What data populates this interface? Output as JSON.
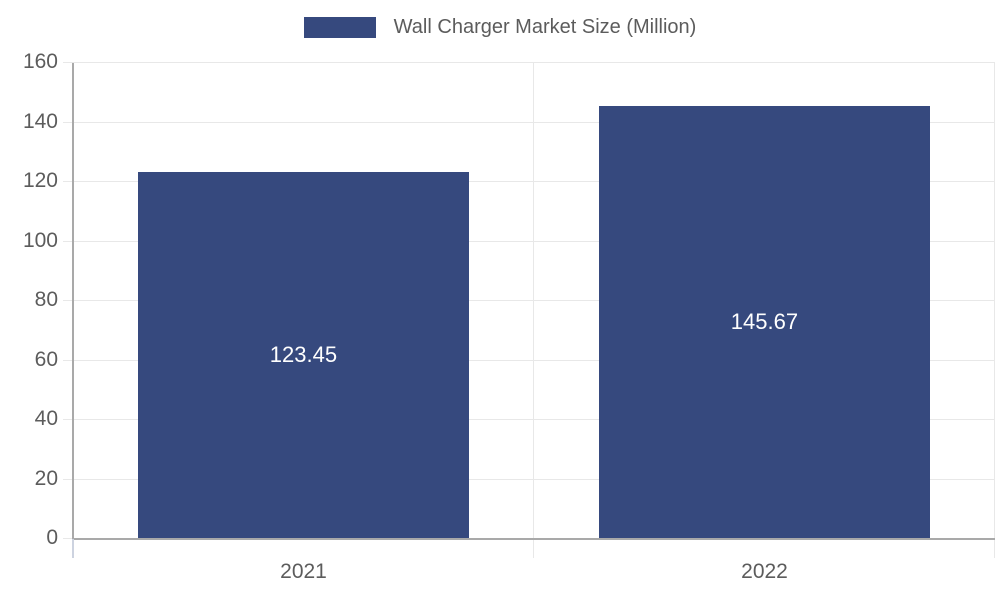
{
  "chart_data": {
    "type": "bar",
    "title": "Wall Charger Market Size (Million)",
    "categories": [
      "2021",
      "2022"
    ],
    "series": [
      {
        "name": "Wall Charger Market Size (Million)",
        "values": [
          123.45,
          145.67
        ]
      }
    ],
    "value_labels": [
      "123.45",
      "145.67"
    ],
    "xlabel": "",
    "ylabel": "",
    "ylim": [
      0,
      160
    ],
    "yticks": [
      0,
      20,
      40,
      60,
      80,
      100,
      120,
      140,
      160
    ],
    "grid": true,
    "legend_position": "top",
    "colors": {
      "bar": "#36497E",
      "bar_label": "#FFFFFF",
      "axis_line": "#A9A9A9",
      "grid_line": "#E8E8E8",
      "tick_line": "#CDD3E0",
      "text": "#5C5C5C"
    }
  },
  "legend": {
    "label": "Wall Charger Market Size (Million)"
  }
}
